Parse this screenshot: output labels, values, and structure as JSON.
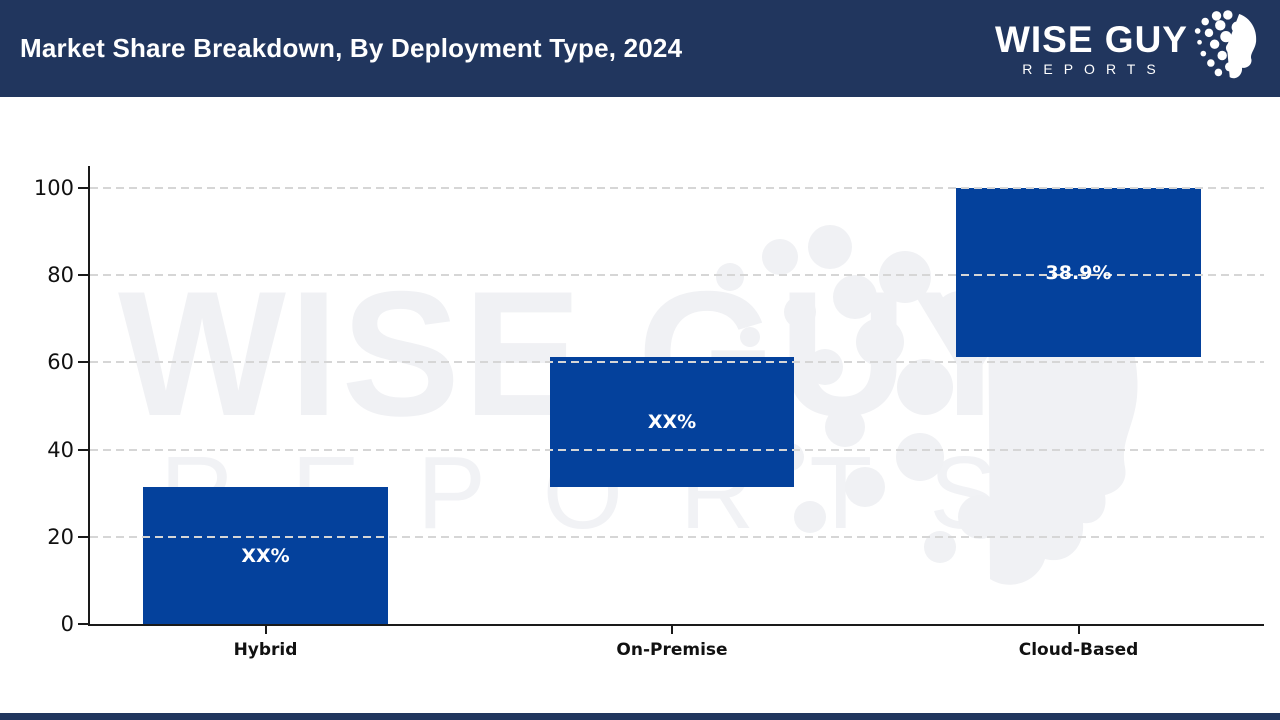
{
  "header": {
    "title": "Market Share Breakdown, By Deployment Type, 2024",
    "brand": {
      "line1": "WISE GUY",
      "line2": "REPORTS"
    }
  },
  "watermark": {
    "line1": "WISE GUY",
    "line2": "REPORTS"
  },
  "chart_data": {
    "type": "bar",
    "subtype": "floating-waterfall-segments",
    "title": "Market Share Breakdown, By Deployment Type, 2024",
    "categories": [
      "Hybrid",
      "On-Premise",
      "Cloud-Based"
    ],
    "segments": [
      {
        "category": "Hybrid",
        "start": 0,
        "end": 31.4,
        "label": "XX%"
      },
      {
        "category": "On-Premise",
        "start": 31.4,
        "end": 61.1,
        "label": "XX%"
      },
      {
        "category": "Cloud-Based",
        "start": 61.1,
        "end": 100,
        "label": "38.9%"
      }
    ],
    "y_ticks": [
      0,
      20,
      40,
      60,
      80,
      100
    ],
    "ylim": [
      0,
      105
    ],
    "xlabel": "",
    "ylabel": "",
    "legend": "none",
    "grid": "horizontal-dashed-above-bars",
    "colors": {
      "bar": "#04419c",
      "bar_label": "#ffffff",
      "grid": "#d6d6d6",
      "axis": "#1a1a1a",
      "header_bg": "#21365e",
      "watermark": "#f0f1f4"
    }
  }
}
